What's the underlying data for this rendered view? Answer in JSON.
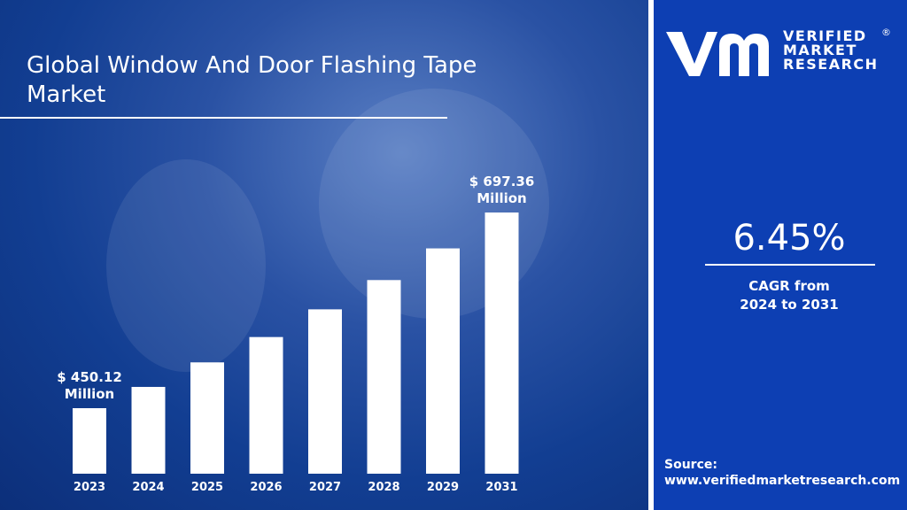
{
  "header": {
    "title_line1": "Global Window And Door Flashing Tape",
    "title_line2": "Market"
  },
  "brand": {
    "line1": "VERIFIED",
    "line2": "MARKET",
    "line3": "RESEARCH",
    "registered": "®"
  },
  "cagr": {
    "value": "6.45%",
    "label_line1": "CAGR from",
    "label_line2": "2024 to 2031"
  },
  "source": {
    "label": "Source:",
    "url": "www.verifiedmarketresearch.com"
  },
  "colors": {
    "background_left": "#1a4aa0",
    "background_right": "#0d3fb3",
    "bars": "#ffffff",
    "text": "#ffffff"
  },
  "chart_data": {
    "type": "bar",
    "categories": [
      "2023",
      "2024",
      "2025",
      "2026",
      "2027",
      "2028",
      "2029",
      "2031"
    ],
    "values": [
      450.12,
      477,
      508,
      540,
      575,
      612,
      652,
      697.36
    ],
    "annotations": [
      {
        "category": "2023",
        "line1": "$ 450.12",
        "line2": "Million"
      },
      {
        "category": "2031",
        "line1": "$ 697.36",
        "line2": "Million"
      }
    ],
    "title": "Global Window And Door Flashing Tape Market",
    "xlabel": "",
    "ylabel": "",
    "grid": false,
    "legend": "none"
  }
}
